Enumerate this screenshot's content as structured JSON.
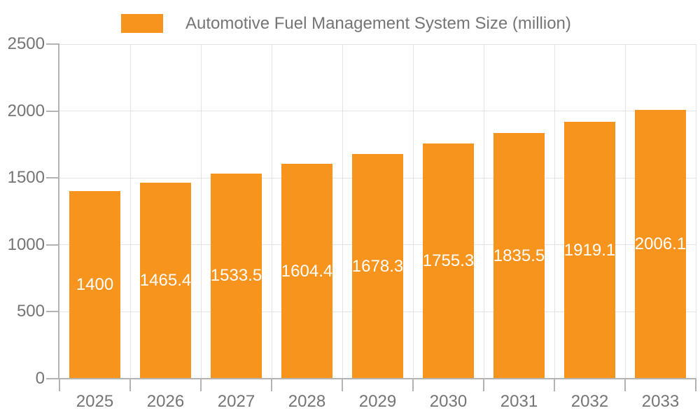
{
  "legend": {
    "label": "Automotive Fuel Management System Size (million)",
    "swatch_color": "#f7941e"
  },
  "chart_data": {
    "type": "bar",
    "title": "Automotive Fuel Management System Size (million)",
    "categories": [
      "2025",
      "2026",
      "2027",
      "2028",
      "2029",
      "2030",
      "2031",
      "2032",
      "2033"
    ],
    "series": [
      {
        "name": "Automotive Fuel Management System Size (million)",
        "values": [
          1400,
          1465.4,
          1533.5,
          1604.4,
          1678.3,
          1755.3,
          1835.5,
          1919.1,
          2006.1
        ]
      }
    ],
    "bar_labels": [
      "1400",
      "1465.4",
      "1533.5",
      "1604.4",
      "1678.3",
      "1755.3",
      "1835.5",
      "1919.1",
      "2006.1"
    ],
    "xlabel": "",
    "ylabel": "",
    "ylim": [
      0,
      2500
    ],
    "yticks": [
      0,
      500,
      1000,
      1500,
      2000,
      2500
    ],
    "grid": true,
    "legend_position": "top",
    "colors": {
      "bar": "#f7941e",
      "axis": "#b3b3b3",
      "grid": "#e3e3e3",
      "text": "#757575",
      "bar_label": "#ffffff",
      "background": "#ffffff"
    }
  }
}
